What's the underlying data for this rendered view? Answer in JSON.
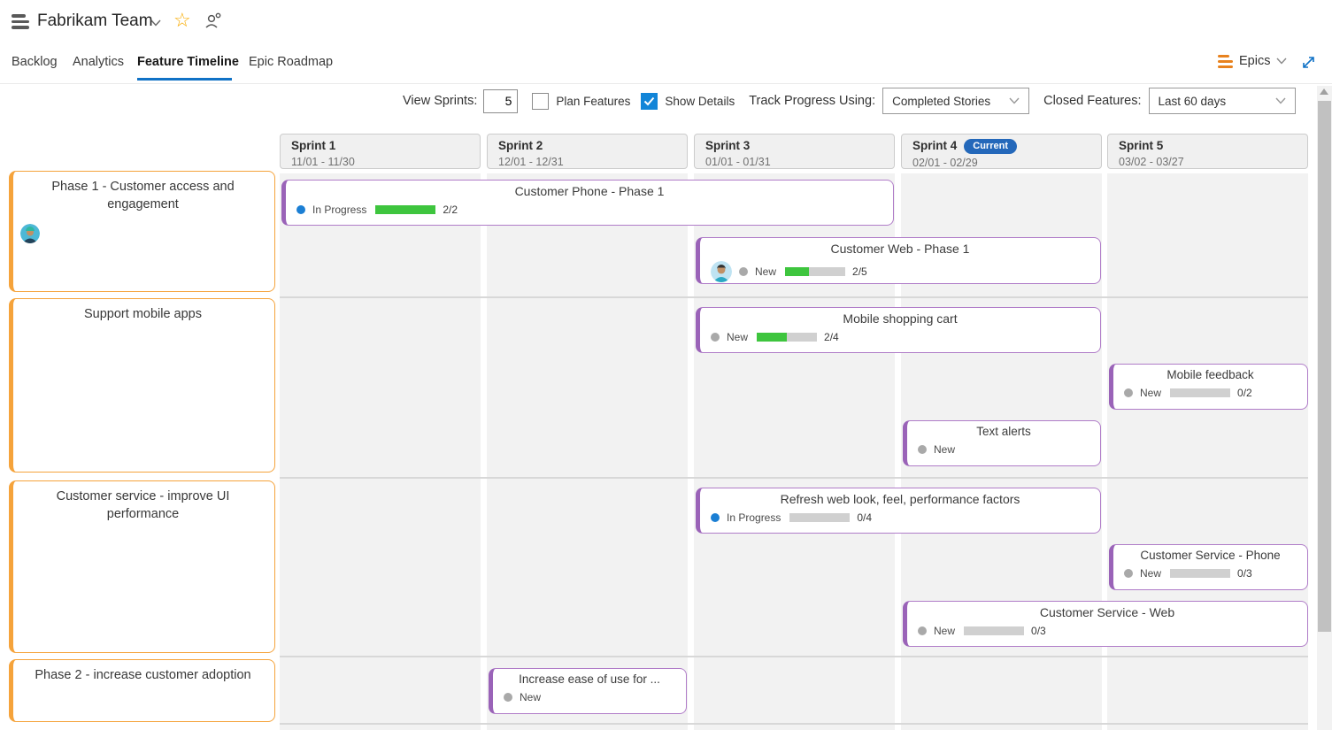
{
  "header": {
    "team_name": "Fabrikam Team",
    "tabs": [
      {
        "label": "Backlog",
        "active": false
      },
      {
        "label": "Analytics",
        "active": false
      },
      {
        "label": "Feature Timeline",
        "active": true
      },
      {
        "label": "Epic Roadmap",
        "active": false
      }
    ],
    "level_selector": {
      "label": "Epics"
    }
  },
  "toolbar": {
    "view_sprints_label": "View Sprints:",
    "view_sprints_value": "5",
    "plan_features_label": "Plan Features",
    "plan_features_checked": false,
    "show_details_label": "Show Details",
    "show_details_checked": true,
    "track_progress_label": "Track Progress Using:",
    "track_progress_value": "Completed Stories",
    "closed_features_label": "Closed Features:",
    "closed_features_value": "Last 60 days"
  },
  "sprints": [
    {
      "name": "Sprint 1",
      "dates": "11/01 - 11/30"
    },
    {
      "name": "Sprint 2",
      "dates": "12/01 - 12/31"
    },
    {
      "name": "Sprint 3",
      "dates": "01/01 - 01/31"
    },
    {
      "name": "Sprint 4",
      "dates": "02/01 - 02/29",
      "badge": "Current"
    },
    {
      "name": "Sprint 5",
      "dates": "03/02 - 03/27"
    }
  ],
  "epics": [
    {
      "title": "Phase 1 - Customer access and engagement",
      "has_avatar": true
    },
    {
      "title": "Support mobile apps",
      "has_avatar": false
    },
    {
      "title": "Customer service - improve UI performance",
      "has_avatar": false
    },
    {
      "title": "Phase 2 - increase customer adoption",
      "has_avatar": false
    }
  ],
  "features": [
    {
      "title": "Customer Phone - Phase 1",
      "status": "In Progress",
      "progress": "2/2",
      "progress_pct": 100,
      "sprint_span": "Sprint 1 - Sprint 3",
      "epic": "Phase 1 - Customer access and engagement"
    },
    {
      "title": "Customer Web - Phase 1",
      "status": "New",
      "progress": "2/5",
      "progress_pct": 40,
      "has_avatar": true,
      "sprint_span": "Sprint 3 - Sprint 4",
      "epic": "Phase 1 - Customer access and engagement"
    },
    {
      "title": "Mobile shopping cart",
      "status": "New",
      "progress": "2/4",
      "progress_pct": 50,
      "sprint_span": "Sprint 3 - Sprint 4",
      "epic": "Support mobile apps"
    },
    {
      "title": "Mobile feedback",
      "status": "New",
      "progress": "0/2",
      "progress_pct": 0,
      "sprint_span": "Sprint 5",
      "epic": "Support mobile apps"
    },
    {
      "title": "Text alerts",
      "status": "New",
      "progress": null,
      "sprint_span": "Sprint 4",
      "epic": "Support mobile apps"
    },
    {
      "title": "Refresh web look, feel, performance factors",
      "status": "In Progress",
      "progress": "0/4",
      "progress_pct": 0,
      "sprint_span": "Sprint 3 - Sprint 4",
      "epic": "Customer service - improve UI performance"
    },
    {
      "title": "Customer Service - Phone",
      "status": "New",
      "progress": "0/3",
      "progress_pct": 0,
      "sprint_span": "Sprint 5",
      "epic": "Customer service - improve UI performance"
    },
    {
      "title": "Customer Service - Web",
      "status": "New",
      "progress": "0/3",
      "progress_pct": 0,
      "sprint_span": "Sprint 4 - Sprint 5",
      "epic": "Customer service - improve UI performance"
    },
    {
      "title": "Increase ease of use for ...",
      "status": "New",
      "progress": null,
      "sprint_span": "Sprint 2",
      "epic": "Phase 2 - increase customer adoption"
    }
  ],
  "colors": {
    "accent_blue": "#1072c6",
    "current_badge": "#2468ba",
    "epic_border": "#f5a33b",
    "feature_border": "#b07cc8",
    "feature_accent": "#9a63b8",
    "progress_green": "#3ec53e",
    "progress_track": "#d0d0d0",
    "status_new_dot": "#a9a9a9",
    "status_inprogress_dot": "#1b7fd4",
    "column_bg": "#f2f2f2"
  }
}
